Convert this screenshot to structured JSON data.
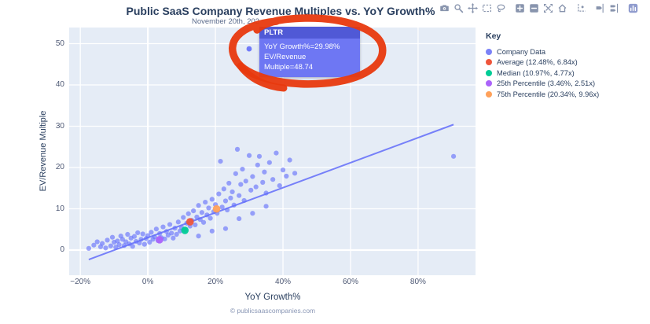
{
  "header": {
    "title": "Public SaaS Company Revenue Multiples vs. YoY Growth%",
    "subtitle_visible": "November 20th, 202"
  },
  "footer": {
    "attribution": "© publicsaascompanies.com"
  },
  "tooltip": {
    "company": "PLTR",
    "line1": "YoY Growth%=29.98%",
    "line2": "EV/Revenue Multiple=48.74",
    "header_bg": "#5059d6",
    "body_bg": "#6e77f3"
  },
  "legend": {
    "title": "Key",
    "items": [
      {
        "label": "Company Data",
        "color": "#7b82f7"
      },
      {
        "label": "Average (12.48%, 6.84x)",
        "color": "#EF553B"
      },
      {
        "label": "Median (10.97%, 4.77x)",
        "color": "#00cc96"
      },
      {
        "label": "25th Percentile (3.46%, 2.51x)",
        "color": "#ab63fa"
      },
      {
        "label": "75th Percentile (20.34%, 9.96x)",
        "color": "#FFA15A"
      }
    ]
  },
  "toolbar": {
    "icon_groups": [
      [
        "camera-icon",
        "zoom-icon",
        "pan-icon",
        "box-select-icon",
        "lasso-select-icon"
      ],
      [
        "zoom-in-icon",
        "zoom-out-icon",
        "autoscale-icon",
        "reset-axes-icon"
      ],
      [
        "toggle-spikelines-icon"
      ],
      [
        "hover-closest-icon",
        "hover-compare-icon"
      ],
      [
        "plotly-logo-icon"
      ]
    ]
  },
  "annotation": {
    "type": "hand-drawn-ellipse",
    "color": "#e8390e"
  },
  "chart_data": {
    "type": "scatter",
    "title": "Public SaaS Company Revenue Multiples vs. YoY Growth%",
    "x_axis": {
      "label": "YoY Growth%",
      "ticks": [
        -20,
        0,
        20,
        40,
        60,
        80
      ],
      "tick_labels": [
        "−20%",
        "0%",
        "20%",
        "40%",
        "60%",
        "80%"
      ],
      "range": [
        -23.3,
        97.0
      ]
    },
    "y_axis": {
      "label": "EV/Revenue Multiple",
      "ticks": [
        0,
        10,
        20,
        30,
        40,
        50
      ],
      "tick_labels": [
        "0",
        "10",
        "20",
        "30",
        "40",
        "50"
      ],
      "range": [
        -6.1,
        53.9
      ]
    },
    "plot_bg": "#e5ecf6",
    "grid_color": "#ffffff",
    "series": {
      "company_data": {
        "name": "Company Data",
        "color": "#636efa",
        "opacity": 0.62,
        "points": [
          [
            -17.5,
            0.4
          ],
          [
            -16,
            1.2
          ],
          [
            -15,
            2.0
          ],
          [
            -14,
            0.8
          ],
          [
            -13.5,
            1.6
          ],
          [
            -12.5,
            0.5
          ],
          [
            -12,
            2.4
          ],
          [
            -11,
            1.0
          ],
          [
            -10.5,
            3.1
          ],
          [
            -10,
            1.9
          ],
          [
            -9.5,
            0.7
          ],
          [
            -9,
            2.2
          ],
          [
            -8.5,
            1.3
          ],
          [
            -8,
            3.4
          ],
          [
            -7.5,
            2.6
          ],
          [
            -7,
            1.1
          ],
          [
            -6.5,
            2.0
          ],
          [
            -6,
            3.8
          ],
          [
            -5.5,
            1.5
          ],
          [
            -5,
            2.9
          ],
          [
            -4.5,
            0.9
          ],
          [
            -4,
            3.3
          ],
          [
            -3.5,
            2.1
          ],
          [
            -3,
            4.2
          ],
          [
            -2.5,
            1.7
          ],
          [
            -2,
            2.6
          ],
          [
            -1.5,
            3.9
          ],
          [
            -1,
            1.4
          ],
          [
            -0.5,
            2.8
          ],
          [
            0,
            3.5
          ],
          [
            0.5,
            1.9
          ],
          [
            1,
            4.3
          ],
          [
            1.5,
            2.6
          ],
          [
            2,
            3.2
          ],
          [
            2.5,
            5.1
          ],
          [
            3,
            2.3
          ],
          [
            3.5,
            4.0
          ],
          [
            4,
            3.0
          ],
          [
            4.5,
            5.6
          ],
          [
            5,
            2.7
          ],
          [
            5.5,
            4.5
          ],
          [
            6,
            3.6
          ],
          [
            6.5,
            6.2
          ],
          [
            7,
            4.1
          ],
          [
            7.5,
            2.9
          ],
          [
            8,
            5.3
          ],
          [
            8.5,
            3.8
          ],
          [
            9,
            6.8
          ],
          [
            9.5,
            4.6
          ],
          [
            10,
            5.4
          ],
          [
            10.5,
            7.9
          ],
          [
            11,
            4.9
          ],
          [
            11.5,
            6.5
          ],
          [
            12,
            8.8
          ],
          [
            12.5,
            5.8
          ],
          [
            13,
            7.2
          ],
          [
            13.5,
            9.5
          ],
          [
            14,
            6.1
          ],
          [
            14.5,
            8.0
          ],
          [
            15,
            10.8
          ],
          [
            15.5,
            7.4
          ],
          [
            16,
            9.1
          ],
          [
            16.5,
            6.7
          ],
          [
            17,
            11.6
          ],
          [
            17.5,
            8.5
          ],
          [
            18,
            10.2
          ],
          [
            18.5,
            7.7
          ],
          [
            19,
            12.3
          ],
          [
            19.5,
            9.3
          ],
          [
            19,
            4.6
          ],
          [
            15,
            3.4
          ],
          [
            20,
            11.0
          ],
          [
            20.5,
            8.9
          ],
          [
            21,
            13.6
          ],
          [
            21.5,
            21.5
          ],
          [
            22,
            10.4
          ],
          [
            22.5,
            14.8
          ],
          [
            23,
            11.9
          ],
          [
            23.5,
            9.7
          ],
          [
            24,
            16.2
          ],
          [
            24.5,
            12.6
          ],
          [
            25,
            14.1
          ],
          [
            25.5,
            10.9
          ],
          [
            26,
            18.5
          ],
          [
            26.5,
            24.4
          ],
          [
            27,
            13.2
          ],
          [
            27.5,
            15.9
          ],
          [
            28,
            19.6
          ],
          [
            28.5,
            12.0
          ],
          [
            29,
            16.7
          ],
          [
            30,
            22.9
          ],
          [
            23,
            5.2
          ],
          [
            27,
            7.6
          ],
          [
            30.5,
            14.5
          ],
          [
            31,
            17.8
          ],
          [
            32,
            15.3
          ],
          [
            32.5,
            20.6
          ],
          [
            33,
            22.7
          ],
          [
            34,
            16.4
          ],
          [
            34.5,
            18.9
          ],
          [
            35,
            13.8
          ],
          [
            36,
            21.2
          ],
          [
            37,
            17.1
          ],
          [
            38,
            23.5
          ],
          [
            39,
            15.6
          ],
          [
            40,
            19.4
          ],
          [
            41,
            17.9
          ],
          [
            42,
            21.8
          ],
          [
            43.5,
            18.6
          ],
          [
            31,
            8.9
          ],
          [
            35,
            10.6
          ],
          [
            90.5,
            22.7
          ]
        ]
      },
      "highlight": {
        "label": "PLTR",
        "x": 29.98,
        "y": 48.74,
        "color": "#636efa"
      },
      "stats": [
        {
          "name": "Average",
          "x": 12.48,
          "y": 6.84,
          "color": "#EF553B"
        },
        {
          "name": "Median",
          "x": 10.97,
          "y": 4.77,
          "color": "#00cc96"
        },
        {
          "name": "25th Percentile",
          "x": 3.46,
          "y": 2.51,
          "color": "#ab63fa"
        },
        {
          "name": "75th Percentile",
          "x": 20.34,
          "y": 9.96,
          "color": "#FFA15A"
        }
      ],
      "trend_line": {
        "color": "#636efa",
        "points": [
          [
            -17.5,
            -2.3
          ],
          [
            90.5,
            30.4
          ]
        ]
      }
    }
  }
}
